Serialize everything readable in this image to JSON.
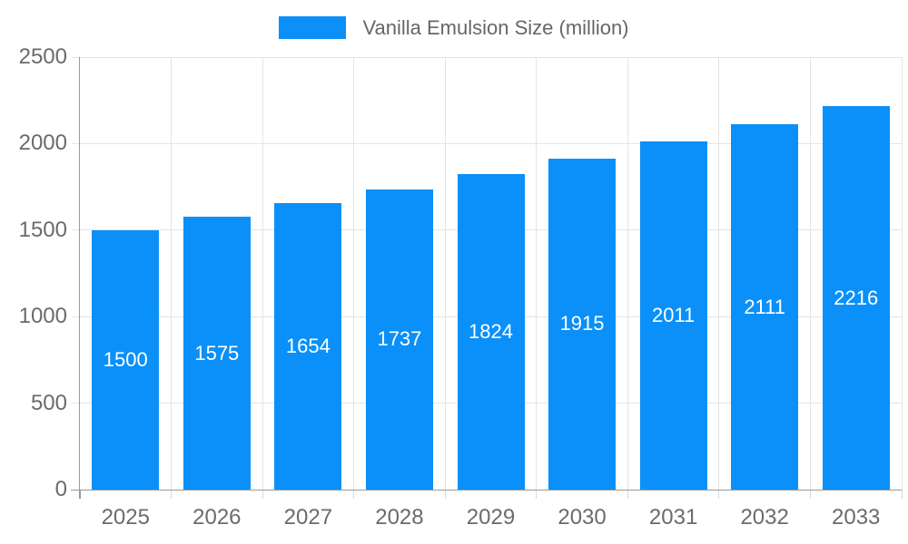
{
  "legend": {
    "label": "Vanilla Emulsion Size (million)"
  },
  "chart_data": {
    "type": "bar",
    "title": "Vanilla Emulsion Size (million)",
    "categories": [
      "2025",
      "2026",
      "2027",
      "2028",
      "2029",
      "2030",
      "2031",
      "2032",
      "2033"
    ],
    "values": [
      1500,
      1575,
      1654,
      1737,
      1824,
      1915,
      2011,
      2111,
      2216
    ],
    "series_name": "Vanilla Emulsion Size (million)",
    "xlabel": "",
    "ylabel": "",
    "ylim": [
      0,
      2500
    ],
    "ytick_step": 500,
    "ytick_labels": [
      "0",
      "500",
      "1000",
      "1500",
      "2000",
      "2500"
    ],
    "grid": true,
    "value_labels": "inside-center",
    "legend_position": "top-center",
    "colors": {
      "bar": "#0a90f8",
      "grid": "#e4e4e4",
      "boundary_tick": "#d9d9d9",
      "axis": "#999999",
      "tick_text": "#6b6b6b",
      "legend_text": "#666666",
      "value_label": "#ffffff",
      "background": "#ffffff"
    }
  }
}
